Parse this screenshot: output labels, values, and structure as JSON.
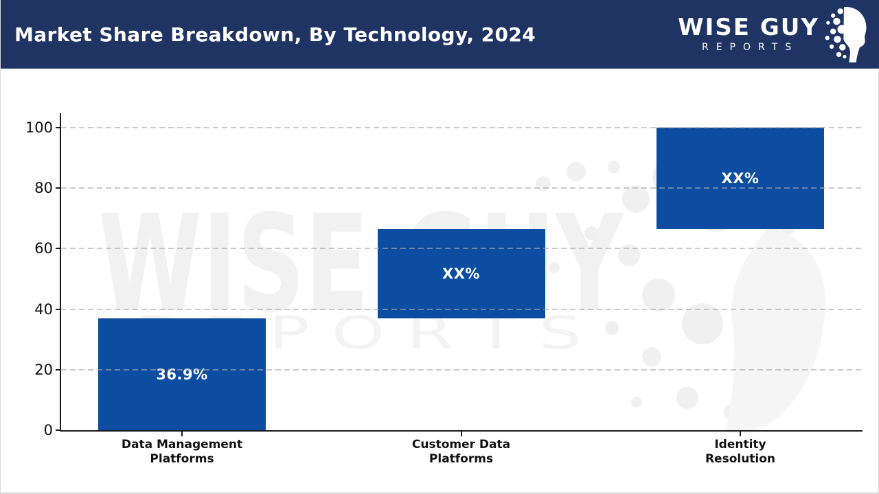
{
  "header": {
    "title": "Market Share Breakdown, By Technology, 2024",
    "logo": {
      "line1": "WISE GUY",
      "line2": "REPORTS"
    }
  },
  "watermark": {
    "line1": "WISE GUY",
    "line2": "R E P O R T S"
  },
  "chart_data": {
    "type": "bar",
    "variant": "waterfall",
    "title": "Market Share Breakdown, By Technology, 2024",
    "categories": [
      "Data Management Platforms",
      "Customer Data Platforms",
      "Identity Resolution"
    ],
    "category_display_lines": [
      [
        "Data Management",
        "Platforms"
      ],
      [
        "Customer Data",
        "Platforms"
      ],
      [
        "Identity",
        "Resolution"
      ]
    ],
    "segments": [
      {
        "category": "Data Management Platforms",
        "start": 0,
        "end": 36.9,
        "label": "36.9%"
      },
      {
        "category": "Customer Data Platforms",
        "start": 36.9,
        "end": 66.5,
        "label": "XX%"
      },
      {
        "category": "Identity Resolution",
        "start": 66.5,
        "end": 100,
        "label": "XX%"
      }
    ],
    "ylim": [
      0,
      100
    ],
    "yticks": [
      0,
      20,
      40,
      60,
      80,
      100
    ],
    "xlabel": "",
    "ylabel": "",
    "grid": {
      "horizontal": true,
      "style": "dashed",
      "above_bars": true
    },
    "legend": "none",
    "bar_color": "#0d4da1",
    "value_label_color": "#ffffff"
  },
  "colors": {
    "header_bg": "#1f3462",
    "bar": "#0d4da1",
    "axis": "#1a1a1a",
    "grid": "#c9c9c9",
    "title_text": "#ffffff",
    "watermark": "#f1f1f1"
  }
}
